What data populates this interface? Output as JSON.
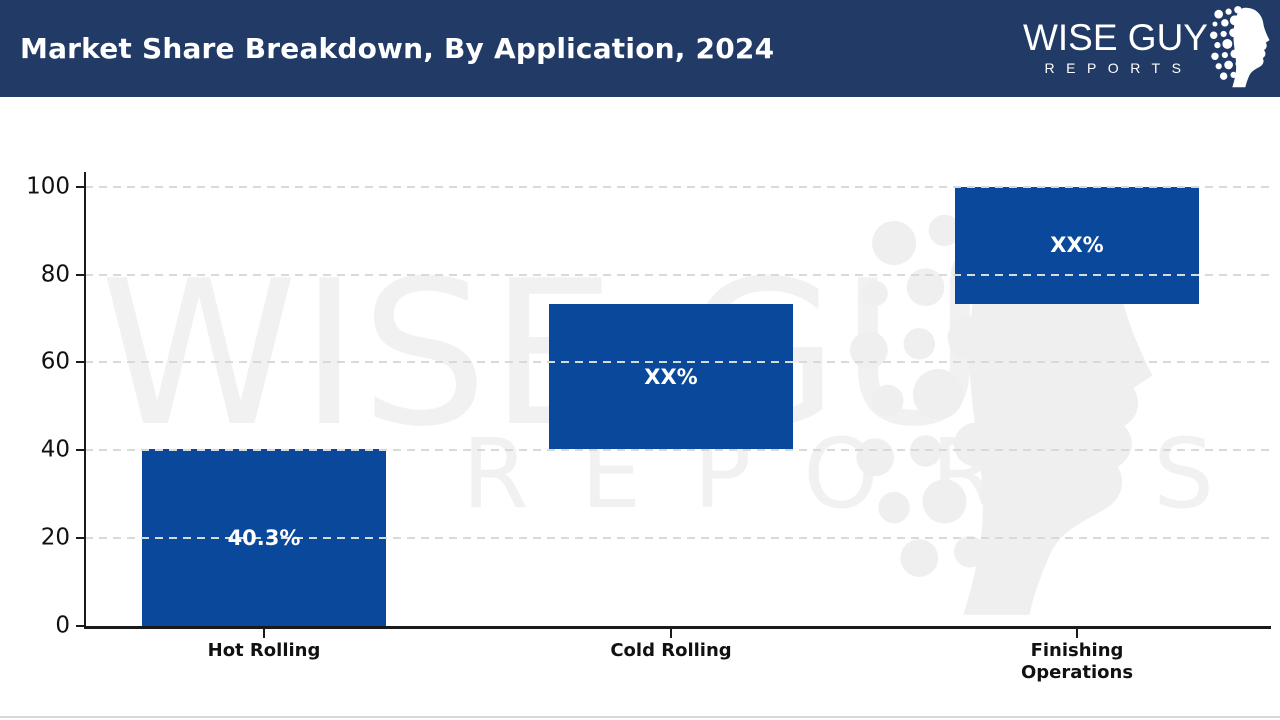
{
  "header": {
    "title": "Market Share Breakdown, By Application, 2024",
    "logo": {
      "name": "WISE GUY",
      "sub": "REPORTS"
    }
  },
  "watermark": {
    "name": "WISE GUY",
    "sub": "REPORTS"
  },
  "chart_data": {
    "type": "bar",
    "subtype": "waterfall",
    "title": "Market Share Breakdown, By Application, 2024",
    "categories": [
      "Hot Rolling",
      "Cold Rolling",
      "Finishing Operations"
    ],
    "series": [
      {
        "name": "Market Share (%)",
        "segments": [
          {
            "category": "Hot Rolling",
            "start": 0,
            "end": 40.3,
            "label": "40.3%"
          },
          {
            "category": "Cold Rolling",
            "start": 40.3,
            "end": 73.3,
            "label": "XX%"
          },
          {
            "category": "Finishing Operations",
            "start": 73.3,
            "end": 100,
            "label": "XX%"
          }
        ]
      }
    ],
    "xlabel": "",
    "ylabel": "",
    "ylim": [
      0,
      100
    ],
    "yticks": [
      0,
      20,
      40,
      60,
      80,
      100
    ],
    "grid": "horizontal-dashed",
    "legend": "none",
    "colors": {
      "bar": "#0a489b",
      "bar_label": "#ffffff",
      "grid": "#d9d9d9",
      "axis": "#1a1a1a",
      "header_bg": "#213a66",
      "header_text": "#ffffff",
      "watermark": "#f1f1f1"
    }
  }
}
